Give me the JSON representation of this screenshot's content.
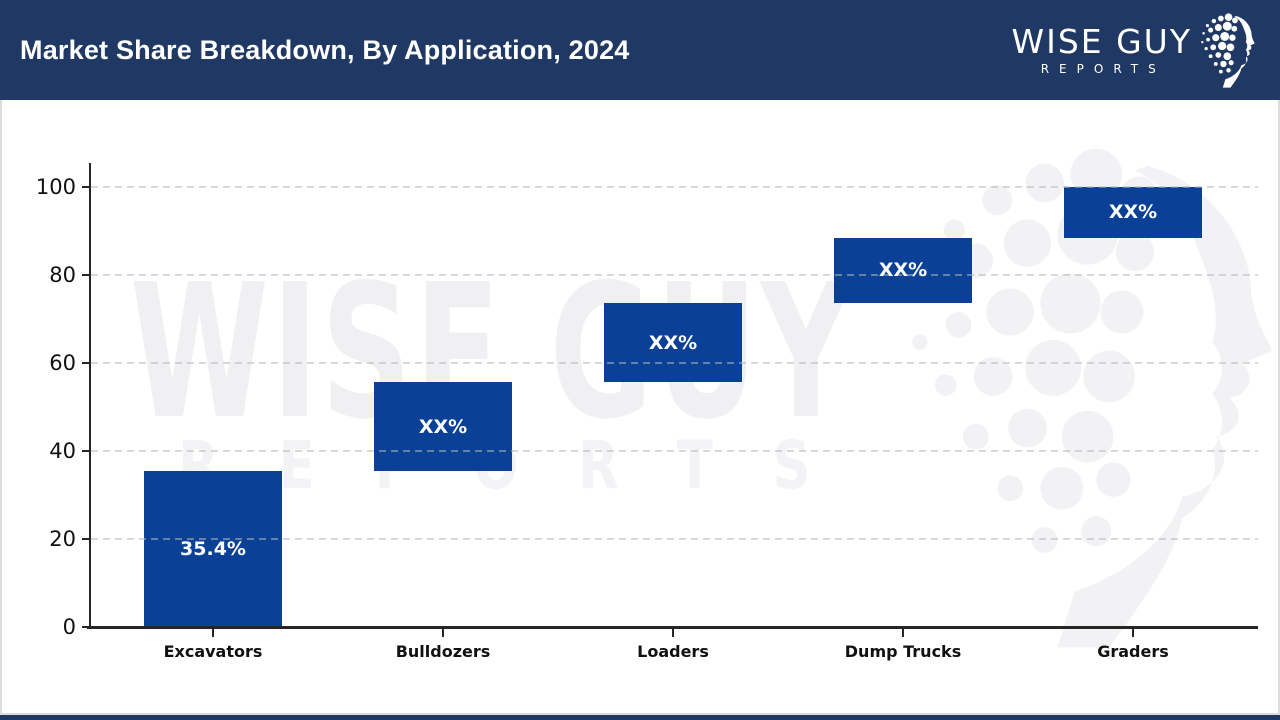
{
  "header": {
    "title": "Market Share Breakdown, By Application, 2024"
  },
  "logo": {
    "line1": "WISE GUY",
    "line2": "REPORTS"
  },
  "watermark": {
    "line1": "WISE GUY",
    "line2": "REPORTS"
  },
  "colors": {
    "header_bg": "#1f3864",
    "bar": "#0a4096",
    "bar_label": "#ffffff",
    "axis": "#262626",
    "gridline": "#d9d9d9",
    "watermark": "#f0f0f3"
  },
  "chart_data": {
    "type": "bar",
    "variant": "waterfall",
    "title": "Market Share Breakdown, By Application, 2024",
    "xlabel": "",
    "ylabel": "",
    "categories": [
      "Excavators",
      "Bulldozers",
      "Loaders",
      "Dump Trucks",
      "Graders"
    ],
    "segments": [
      {
        "category": "Excavators",
        "start": 0,
        "end": 35.4,
        "label": "35.4%"
      },
      {
        "category": "Bulldozers",
        "start": 35.4,
        "end": 55.6,
        "label": "XX%"
      },
      {
        "category": "Loaders",
        "start": 55.6,
        "end": 73.7,
        "label": "XX%"
      },
      {
        "category": "Dump Trucks",
        "start": 73.7,
        "end": 88.5,
        "label": "XX%"
      },
      {
        "category": "Graders",
        "start": 88.5,
        "end": 100,
        "label": "XX%"
      }
    ],
    "y_ticks": [
      0,
      20,
      40,
      60,
      80,
      100
    ],
    "ylim": [
      0,
      100
    ],
    "grid": true,
    "grid_style": "dashed",
    "legend": null,
    "bar_color": "#0a4096",
    "bar_label_color": "#ffffff"
  }
}
